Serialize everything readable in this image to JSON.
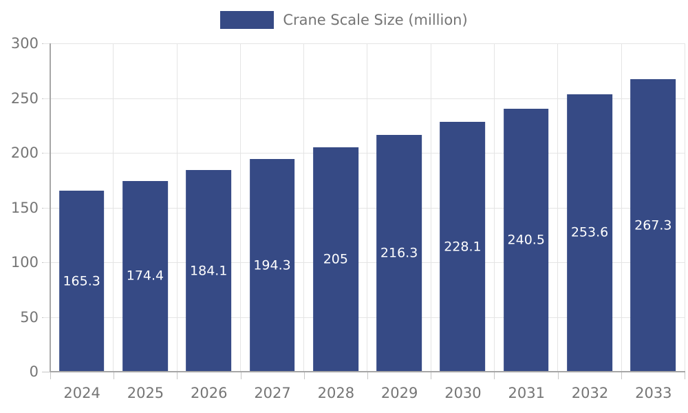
{
  "legend": {
    "label": "Crane Scale Size (million)",
    "swatch_color": "#364a85",
    "text_color": "#757575"
  },
  "chart_data": {
    "type": "bar",
    "title": "",
    "series_name": "Crane Scale Size (million)",
    "categories": [
      "2024",
      "2025",
      "2026",
      "2027",
      "2028",
      "2029",
      "2030",
      "2031",
      "2032",
      "2033"
    ],
    "values": [
      165.3,
      174.4,
      184.1,
      194.3,
      205,
      216.3,
      228.1,
      240.5,
      253.6,
      267.3
    ],
    "xlabel": "",
    "ylabel": "",
    "ylim": [
      0,
      300
    ],
    "yticks": [
      0,
      50,
      100,
      150,
      200,
      250,
      300
    ],
    "grid": true,
    "legend_position": "top",
    "bar_color": "#364a85",
    "value_label_color": "#ffffff",
    "grid_color": "#e4e4e4",
    "axis_color": "#a6a6a6",
    "tick_color": "#c4c4c4",
    "tick_label_color": "#757575",
    "background_color": "#ffffff"
  }
}
